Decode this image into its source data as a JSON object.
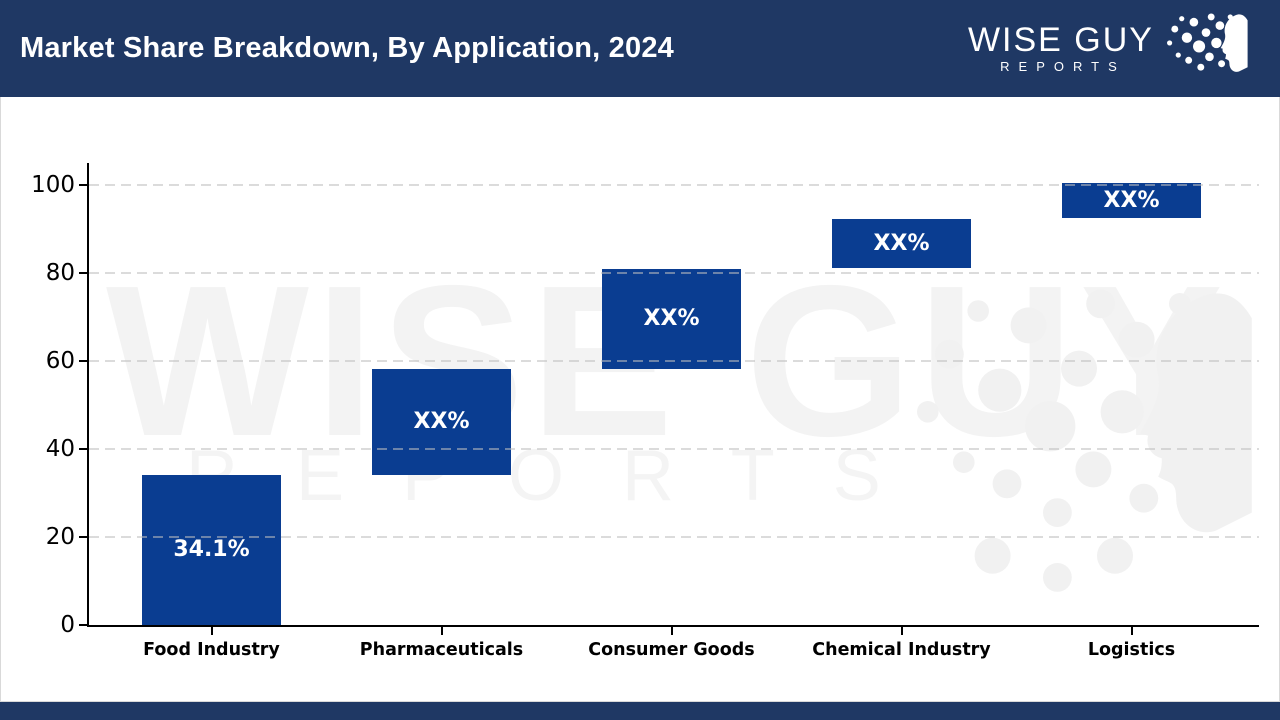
{
  "header": {
    "title": "Market Share Breakdown, By Application, 2024",
    "bg_color": "#1f3864",
    "logo": {
      "line1": "WISE GUY",
      "line2": "REPORTS"
    }
  },
  "watermark": {
    "line1": "WISE GUY",
    "line2": "REPORTS"
  },
  "footer": {
    "bg_color": "#1f3864"
  },
  "chart_data": {
    "type": "bar",
    "subtype": "waterfall-stacked-segments",
    "title": "Market Share Breakdown, By Application, 2024",
    "categories": [
      "Food Industry",
      "Pharmaceuticals",
      "Consumer Goods",
      "Chemical Industry",
      "Logistics"
    ],
    "segments": [
      {
        "category": "Food Industry",
        "start": 0,
        "end": 34.1,
        "value": 34.1,
        "label": "34.1%"
      },
      {
        "category": "Pharmaceuticals",
        "start": 34.1,
        "end": 58.2,
        "value": 24.1,
        "label": "XX%"
      },
      {
        "category": "Consumer Goods",
        "start": 58.2,
        "end": 80.9,
        "value": 22.7,
        "label": "XX%"
      },
      {
        "category": "Chemical Industry",
        "start": 81.1,
        "end": 92.3,
        "value": 11.2,
        "label": "XX%"
      },
      {
        "category": "Logistics",
        "start": 92.4,
        "end": 100.4,
        "value": 8.0,
        "label": "XX%"
      }
    ],
    "xlabel": "",
    "ylabel": "",
    "ylim": [
      0,
      105
    ],
    "yticks": [
      0,
      20,
      40,
      60,
      80,
      100
    ],
    "grid": "horizontal-dashed",
    "legend": "none",
    "bar_color": "#0a3d91",
    "bar_label_color": "#ffffff",
    "axis_color": "#000000"
  }
}
